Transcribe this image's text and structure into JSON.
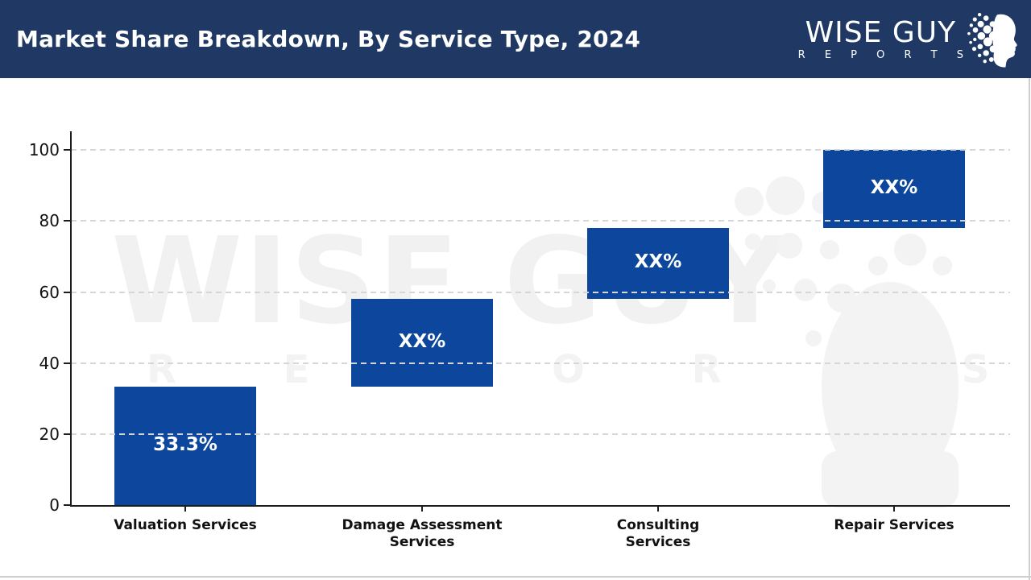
{
  "header": {
    "title": "Market Share Breakdown, By Service Type, 2024",
    "bg_color": "#1f3864",
    "logo": {
      "wordmark": "WISE GUY",
      "subtext": "R E P O R T S"
    }
  },
  "watermark": {
    "wordmark": "WISE GUY",
    "subtext": "R E P O R T S"
  },
  "chart_data": {
    "type": "bar",
    "subtype": "stacked-waterfall",
    "title": "Market Share Breakdown, By Service Type, 2024",
    "categories": [
      "Valuation Services",
      "Damage Assessment\nServices",
      "Consulting\nServices",
      "Repair Services"
    ],
    "segments": [
      {
        "category": "Valuation Services",
        "start": 0,
        "end": 33.3,
        "label": "33.3%"
      },
      {
        "category": "Damage Assessment Services",
        "start": 33.3,
        "end": 58,
        "label": "XX%"
      },
      {
        "category": "Consulting Services",
        "start": 58,
        "end": 78,
        "label": "XX%"
      },
      {
        "category": "Repair Services",
        "start": 78,
        "end": 100,
        "label": "XX%"
      }
    ],
    "yticks": [
      0,
      20,
      40,
      60,
      80,
      100
    ],
    "ylim": [
      0,
      105
    ],
    "xlabel": "",
    "ylabel": "",
    "bar_color": "#0c479d",
    "bar_label_color": "#ffffff",
    "grid": {
      "horizontal": true,
      "style": "dashed",
      "color": "#d6d6d6"
    },
    "legend": "none"
  }
}
